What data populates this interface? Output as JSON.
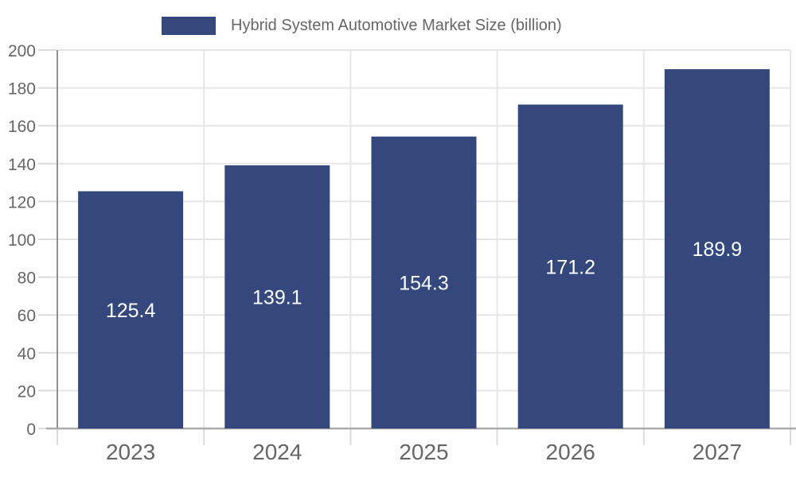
{
  "chart_data": {
    "type": "bar",
    "title": "Hybrid System Automotive Market Size (billion)",
    "legend": {
      "label": "Hybrid System Automotive Market Size (billion)",
      "position": "top-center"
    },
    "categories": [
      "2023",
      "2024",
      "2025",
      "2026",
      "2027"
    ],
    "series": [
      {
        "name": "Hybrid System Automotive Market Size (billion)",
        "values": [
          125.4,
          139.1,
          154.3,
          171.2,
          189.9
        ]
      }
    ],
    "value_labels": [
      "125.4",
      "139.1",
      "154.3",
      "171.2",
      "189.9"
    ],
    "xlabel": "",
    "ylabel": "",
    "ylim": [
      0,
      200
    ],
    "yticks": [
      0,
      20,
      40,
      60,
      80,
      100,
      120,
      140,
      160,
      180,
      200
    ],
    "grid": {
      "horizontal": true,
      "vertical": true
    },
    "legend_visible": true,
    "colors": {
      "bar": "#35487E",
      "bar_label": "#FFFFFF",
      "axis_text": "#666666",
      "legend_text": "#666666",
      "gridline": "#E6E6E6",
      "tick_mark": "#DCDCDC",
      "spine_left": "#8F8F8F",
      "spine_bottom": "#ABABAB",
      "background": "#FFFFFF"
    }
  }
}
